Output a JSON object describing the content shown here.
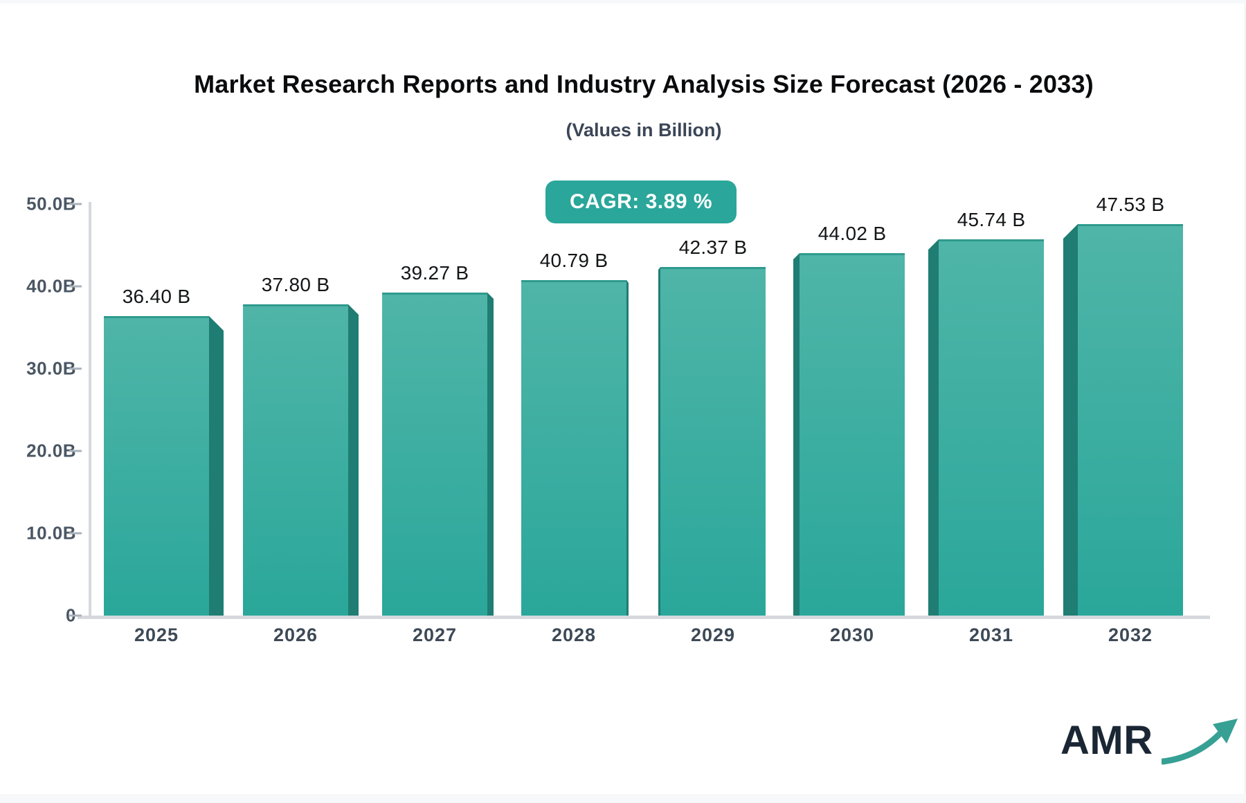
{
  "header": {
    "title": "Market Research Reports and Industry Analysis Size Forecast (2026 - 2033)",
    "subtitle": "(Values in Billion)"
  },
  "badge": {
    "label": "CAGR: 3.89 %"
  },
  "chart_data": {
    "type": "bar",
    "title": "Market Research Reports and Industry Analysis Size Forecast (2026 - 2033)",
    "subtitle": "(Values in Billion)",
    "categories": [
      "2025",
      "2026",
      "2027",
      "2028",
      "2029",
      "2030",
      "2031",
      "2032"
    ],
    "values": [
      36.4,
      37.8,
      39.27,
      40.79,
      42.37,
      44.02,
      45.74,
      47.53
    ],
    "bar_labels": [
      "36.40 B",
      "37.80 B",
      "39.27 B",
      "40.79 B",
      "42.37 B",
      "44.02 B",
      "45.74 B",
      "47.53 B"
    ],
    "xlabel": "",
    "ylabel": "",
    "ylim": [
      0,
      50
    ],
    "yticks": [
      {
        "label": "50.0B",
        "value": 50
      },
      {
        "label": "40.0B",
        "value": 40
      },
      {
        "label": "30.0B",
        "value": 30
      },
      {
        "label": "20.0B",
        "value": 20
      },
      {
        "label": "10.0B",
        "value": 10
      },
      {
        "label": "0",
        "value": 0
      }
    ],
    "grid": false,
    "legend_position": "none",
    "colors": {
      "bar_top": "#4fb5a8",
      "bar_bottom": "#2aa79a",
      "bar_top_edge": "#2f9a8e",
      "bar_side": "#1f7d73",
      "badge_bg": "#2aa69a",
      "axis_line": "#d5d9dd",
      "tick_dash": "#aab2ba",
      "tick_text": "#4a5663",
      "category_text": "#3d4956",
      "value_text": "#131517"
    }
  },
  "logo": {
    "text": "AMR",
    "text_color": "#1a2633",
    "arrow_color": "#37a094"
  }
}
